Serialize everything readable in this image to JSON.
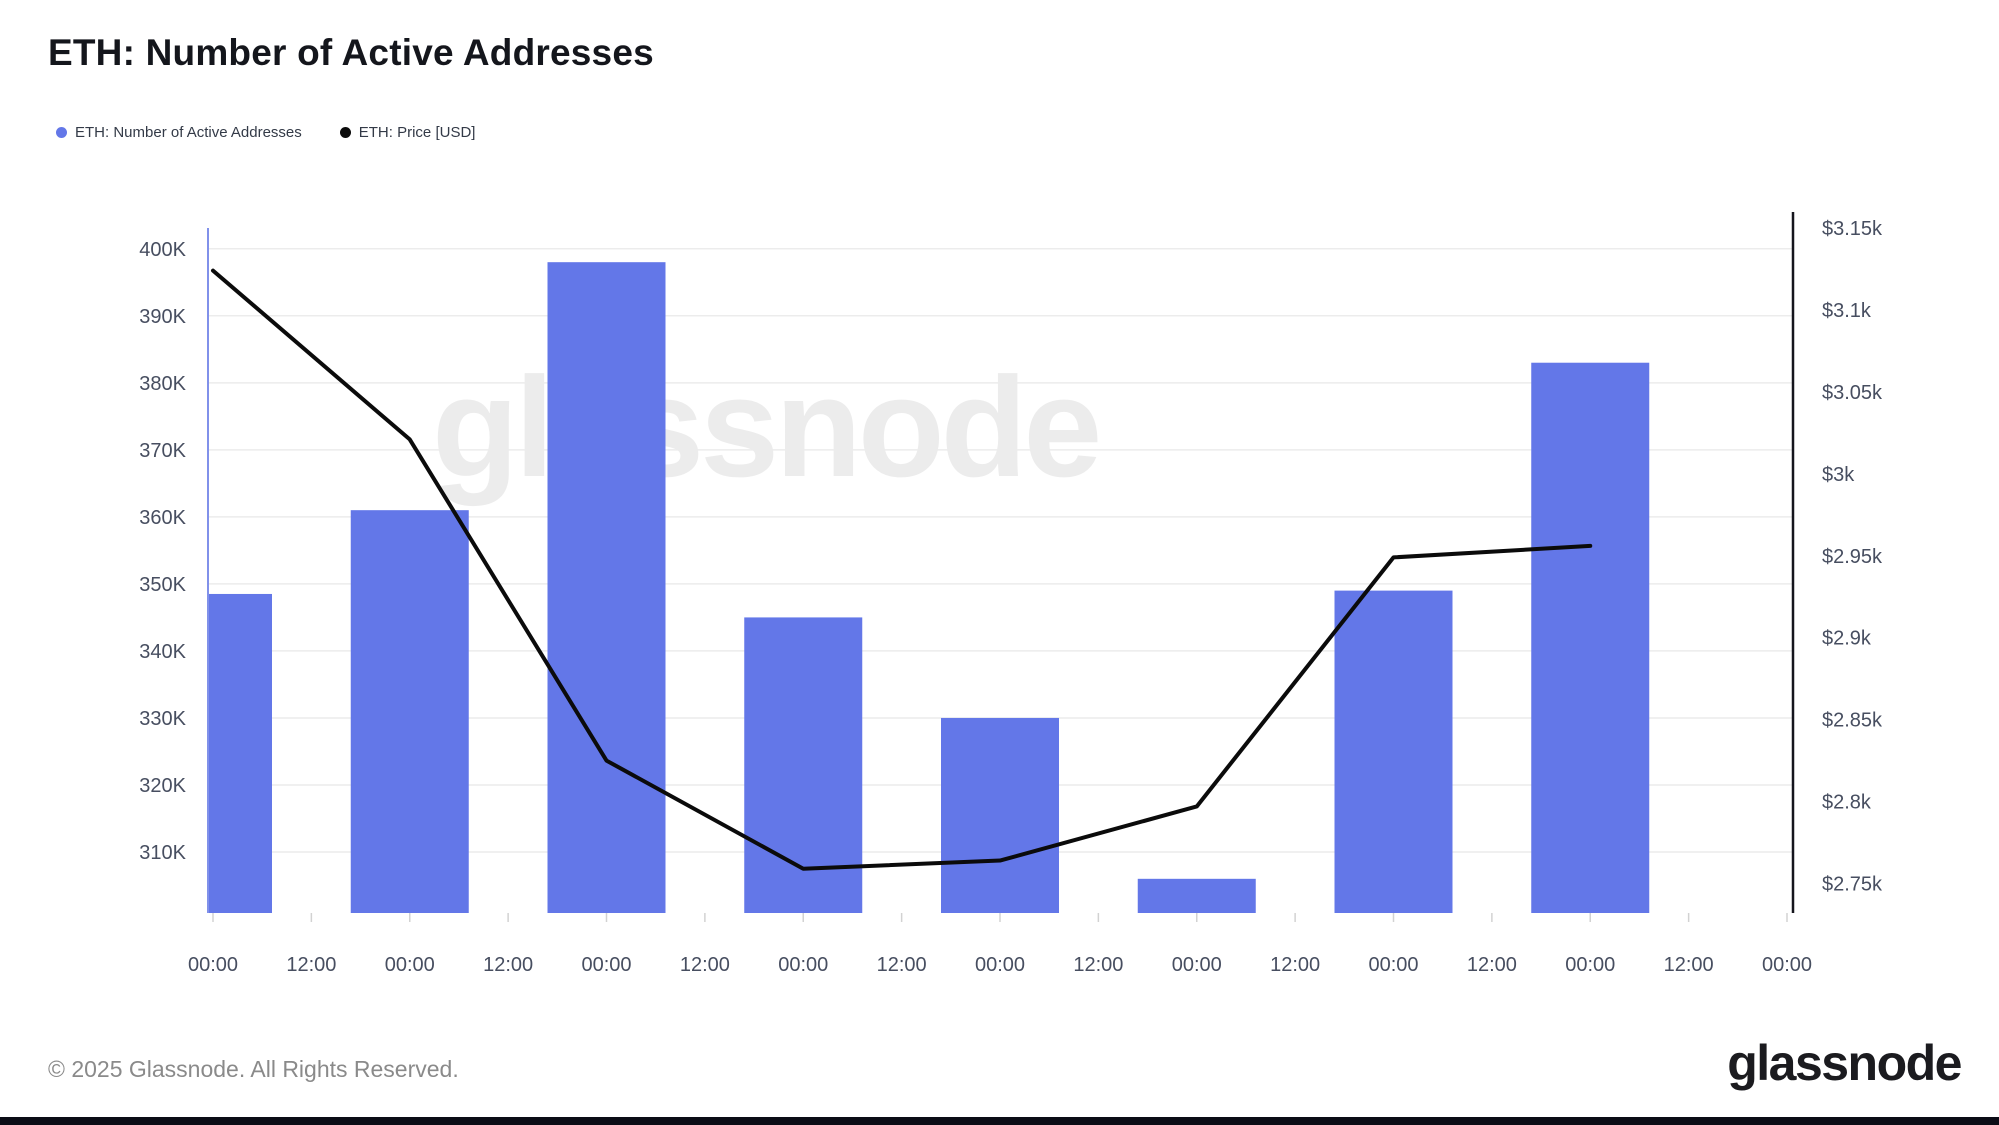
{
  "title": "ETH: Number of Active Addresses",
  "legend": {
    "items": [
      {
        "label": "ETH: Number of Active Addresses",
        "color": "#6377e8"
      },
      {
        "label": "ETH: Price [USD]",
        "color": "#0b0b0b"
      }
    ]
  },
  "watermark_text": "glassnode",
  "footer": {
    "copyright": "© 2025 Glassnode. All Rights Reserved.",
    "logo_text": "glassnode"
  },
  "chart_data": {
    "type": "bar",
    "title": "ETH: Number of Active Addresses",
    "grid": "horizontal-only",
    "legend_position": "top-left",
    "x_axis": {
      "tick_labels": [
        "00:00",
        "12:00",
        "00:00",
        "12:00",
        "00:00",
        "12:00",
        "00:00",
        "12:00",
        "00:00",
        "12:00",
        "00:00",
        "12:00",
        "00:00",
        "12:00",
        "00:00",
        "12:00",
        "00:00"
      ]
    },
    "left_axis": {
      "series": "ETH: Number of Active Addresses",
      "tick_labels": [
        "400K",
        "390K",
        "380K",
        "370K",
        "360K",
        "350K",
        "340K",
        "330K",
        "320K",
        "310K"
      ],
      "tick_values_k": [
        400,
        390,
        380,
        370,
        360,
        350,
        340,
        330,
        320,
        310
      ],
      "min_k": 300.9,
      "max_k": 403.1,
      "axis_line_color": "#8191ea",
      "label_color": "#474e60"
    },
    "right_axis": {
      "series": "ETH: Price [USD]",
      "tick_labels": [
        "$3.15k",
        "$3.1k",
        "$3.05k",
        "$3k",
        "$2.95k",
        "$2.9k",
        "$2.85k",
        "$2.8k",
        "$2.75k"
      ],
      "tick_values_usd": [
        3150,
        3100,
        3050,
        3000,
        2950,
        2900,
        2850,
        2800,
        2750
      ],
      "min_usd": 2732,
      "max_usd": 3150,
      "axis_line_color": "#15151d",
      "label_color": "#474e60"
    },
    "bars": {
      "series_name": "ETH: Number of Active Addresses",
      "color": "#6377e8",
      "categories_day_index": [
        0,
        1,
        2,
        3,
        4,
        5,
        6,
        7
      ],
      "values_k": [
        348.5,
        361,
        398,
        345,
        330,
        306,
        349,
        383
      ],
      "first_bar_clipped_by_axis": true
    },
    "line": {
      "series_name": "ETH: Price [USD]",
      "color": "#0b0b0b",
      "categories_day_index": [
        0,
        1,
        2,
        3,
        4,
        5,
        6,
        7
      ],
      "values_usd": [
        3124,
        3021,
        2825,
        2759,
        2764,
        2797,
        2949,
        2956
      ]
    },
    "gridline_color": "#ececec",
    "tick_mark_color": "#d2d2d2"
  }
}
